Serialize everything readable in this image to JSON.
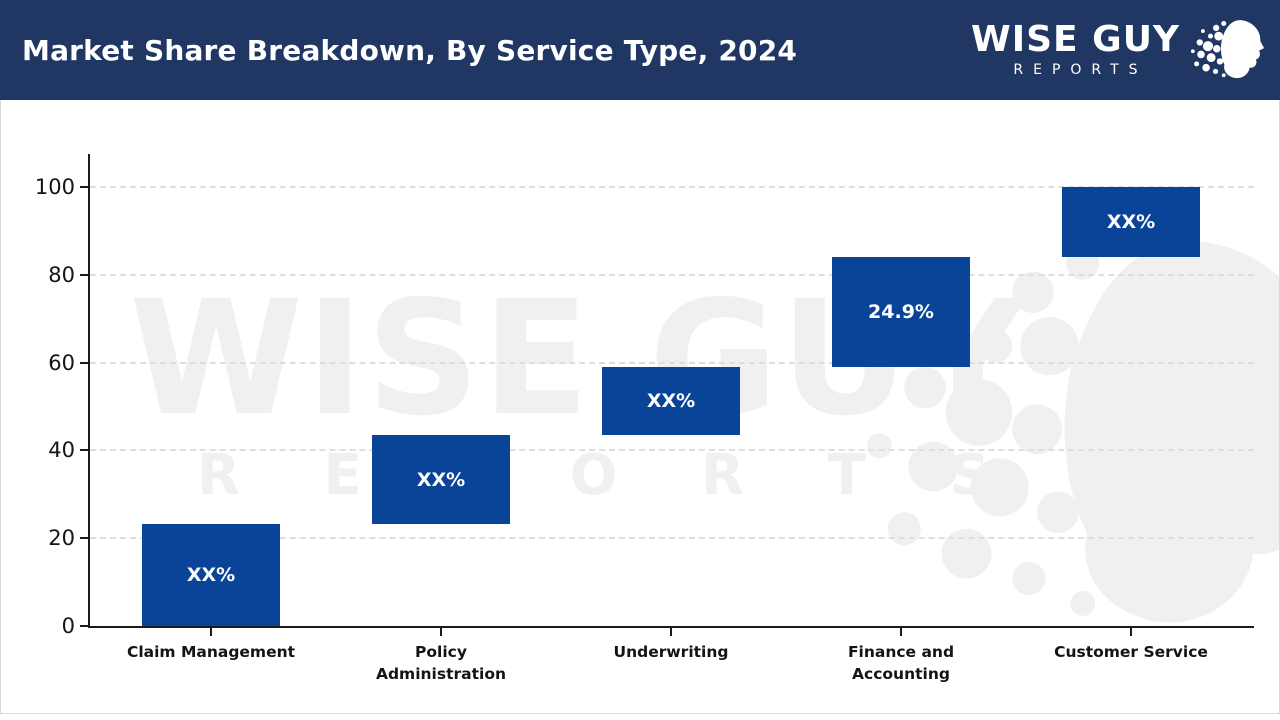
{
  "header": {
    "title": "Market Share Breakdown, By Service Type, 2024",
    "background": "#203764",
    "logo": {
      "line1": "WISE GUY",
      "line2": "REPORTS"
    }
  },
  "watermark": {
    "line1": "WISE GUY",
    "line2": "R E P O R T S"
  },
  "chart_data": {
    "type": "bar",
    "subtype": "waterfall",
    "title": "Market Share Breakdown, By Service Type, 2024",
    "categories": [
      "Claim Management",
      "Policy Administration",
      "Underwriting",
      "Finance and Accounting",
      "Customer Service"
    ],
    "series": [
      {
        "name": "Market share (%)",
        "values": [
          23.2,
          20.2,
          15.7,
          24.9,
          16.0
        ]
      }
    ],
    "segment_ranges": [
      [
        0,
        23.2
      ],
      [
        23.2,
        43.4
      ],
      [
        43.4,
        59.1
      ],
      [
        59.1,
        84.0
      ],
      [
        84.0,
        100.0
      ]
    ],
    "bar_labels": [
      "XX%",
      "XX%",
      "XX%",
      "24.9%",
      "XX%"
    ],
    "yticks": [
      0,
      20,
      40,
      60,
      80,
      100
    ],
    "ylim": [
      0,
      100
    ],
    "xlabel": "",
    "ylabel": "",
    "grid": "horizontal-dashed",
    "legend": "none",
    "bar_color": "#0a4499",
    "bar_label_color": "#ffffff",
    "axis_color": "#1a1a1a",
    "grid_color": "#dedede",
    "tick_label_color": "#141414"
  }
}
